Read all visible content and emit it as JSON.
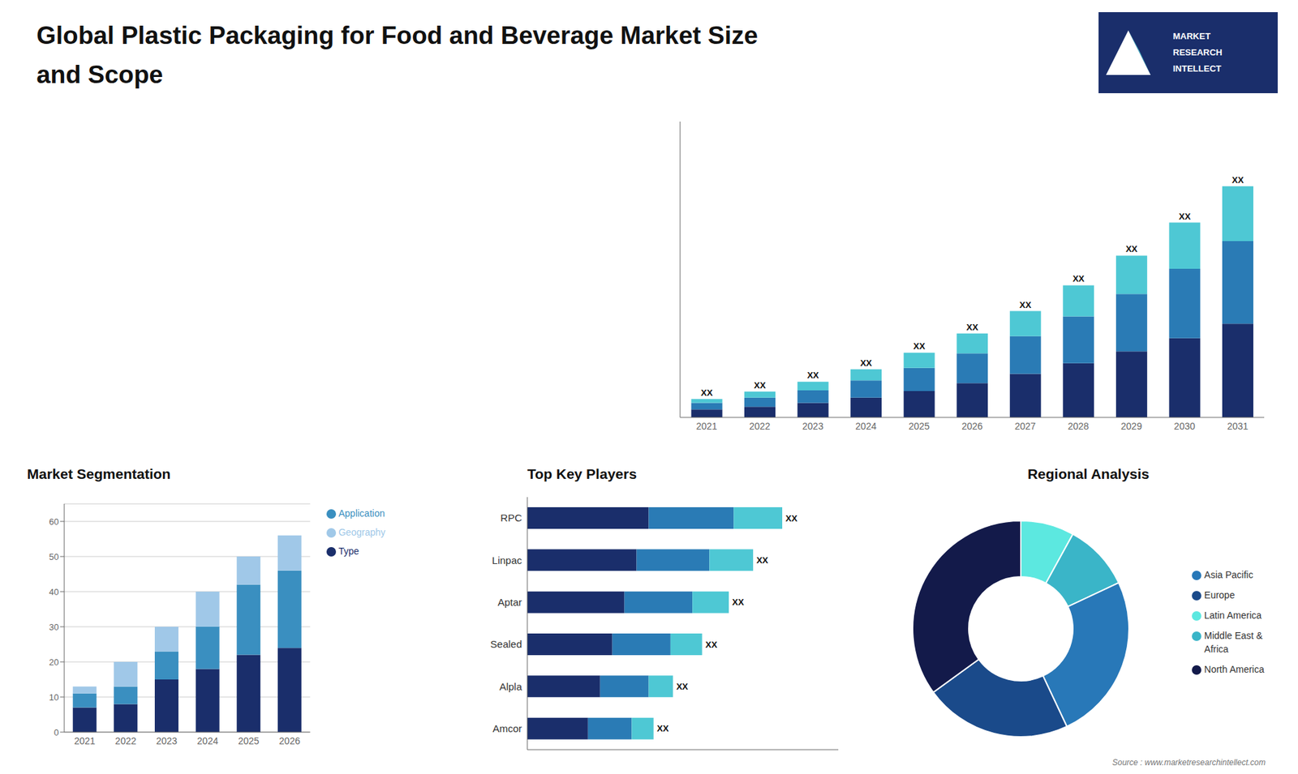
{
  "chart_data": [
    {
      "type": "bar",
      "title": "Global Plastic Packaging for Food and Beverage Market Size\nand Scope",
      "stacked": true,
      "categories": [
        "2021",
        "2022",
        "2023",
        "2024",
        "2025",
        "2026",
        "2027",
        "2028",
        "2029",
        "2030",
        "2031"
      ],
      "series": [
        {
          "color": "#1a2e6b",
          "values": [
            1.2,
            1.6,
            2.2,
            3.0,
            4.0,
            5.2,
            6.6,
            8.2,
            10.0,
            12.0,
            14.2
          ]
        },
        {
          "color": "#2a7bb5",
          "values": [
            1.0,
            1.4,
            1.9,
            2.6,
            3.5,
            4.5,
            5.7,
            7.1,
            8.7,
            10.5,
            12.5
          ]
        },
        {
          "color": "#4ec8d4",
          "values": [
            0.6,
            0.9,
            1.3,
            1.7,
            2.3,
            3.0,
            3.8,
            4.7,
            5.8,
            7.0,
            8.3
          ],
          "value_labels": [
            "XX",
            "XX",
            "XX",
            "XX",
            "XX",
            "XX",
            "XX",
            "XX",
            "XX",
            "XX",
            "XX"
          ]
        }
      ],
      "ylim": [
        0,
        44.8
      ],
      "tick_labels": "x",
      "data_labels": true,
      "annotations": [
        "MARKET",
        "RESEARCH",
        "INTELLECT"
      ]
    },
    {
      "type": "bar",
      "title": "Market Segmentation",
      "stacked": true,
      "categories": [
        "2021",
        "2022",
        "2023",
        "2024",
        "2025",
        "2026"
      ],
      "series": [
        {
          "name": "Type",
          "color": "#1a2e6b",
          "values": [
            7,
            8,
            15,
            18,
            22,
            24
          ]
        },
        {
          "name": "Application",
          "color": "#3a8fc0",
          "values": [
            4,
            5,
            8,
            12,
            20,
            22
          ]
        },
        {
          "name": "Geography",
          "color": "#a0c8e8",
          "values": [
            2,
            7,
            7,
            10,
            8,
            10
          ]
        }
      ],
      "ylim": [
        0,
        65
      ],
      "yticks": [
        0,
        10,
        20,
        30,
        40,
        50,
        60
      ],
      "grid": true,
      "legend": "right"
    },
    {
      "type": "bar",
      "title": "Top Key Players",
      "stacked": true,
      "orientation": "horizontal",
      "categories": [
        "RPC",
        "Linpac",
        "Aptar",
        "Sealed",
        "Alpla",
        "Amcor"
      ],
      "series": [
        {
          "color": "#1a2e6b",
          "values": [
            5.0,
            4.5,
            4.0,
            3.5,
            3.0,
            2.5
          ]
        },
        {
          "color": "#2a7bb5",
          "values": [
            3.5,
            3.0,
            2.8,
            2.4,
            2.0,
            1.8
          ]
        },
        {
          "color": "#4ec8d4",
          "values": [
            2.0,
            1.8,
            1.5,
            1.3,
            1.0,
            0.9
          ],
          "value_labels": [
            "XX",
            "XX",
            "XX",
            "XX",
            "XX",
            "XX"
          ]
        }
      ],
      "xlim": [
        0,
        12.81
      ],
      "tick_labels": "y",
      "data_labels": true
    },
    {
      "type": "pie",
      "title": "Regional Analysis",
      "categories": [
        "Latin America",
        "Middle East &\nAfrica",
        "Asia Pacific",
        "Europe",
        "North America"
      ],
      "values": [
        8,
        10,
        25,
        22,
        35
      ],
      "colors": [
        "#5ce8e0",
        "#3ab5c8",
        "#2878b8",
        "#1a4a8a",
        "#131a4a"
      ],
      "legend": "right",
      "annotations": [
        "Source : www.marketresearchintellect.com"
      ]
    }
  ]
}
